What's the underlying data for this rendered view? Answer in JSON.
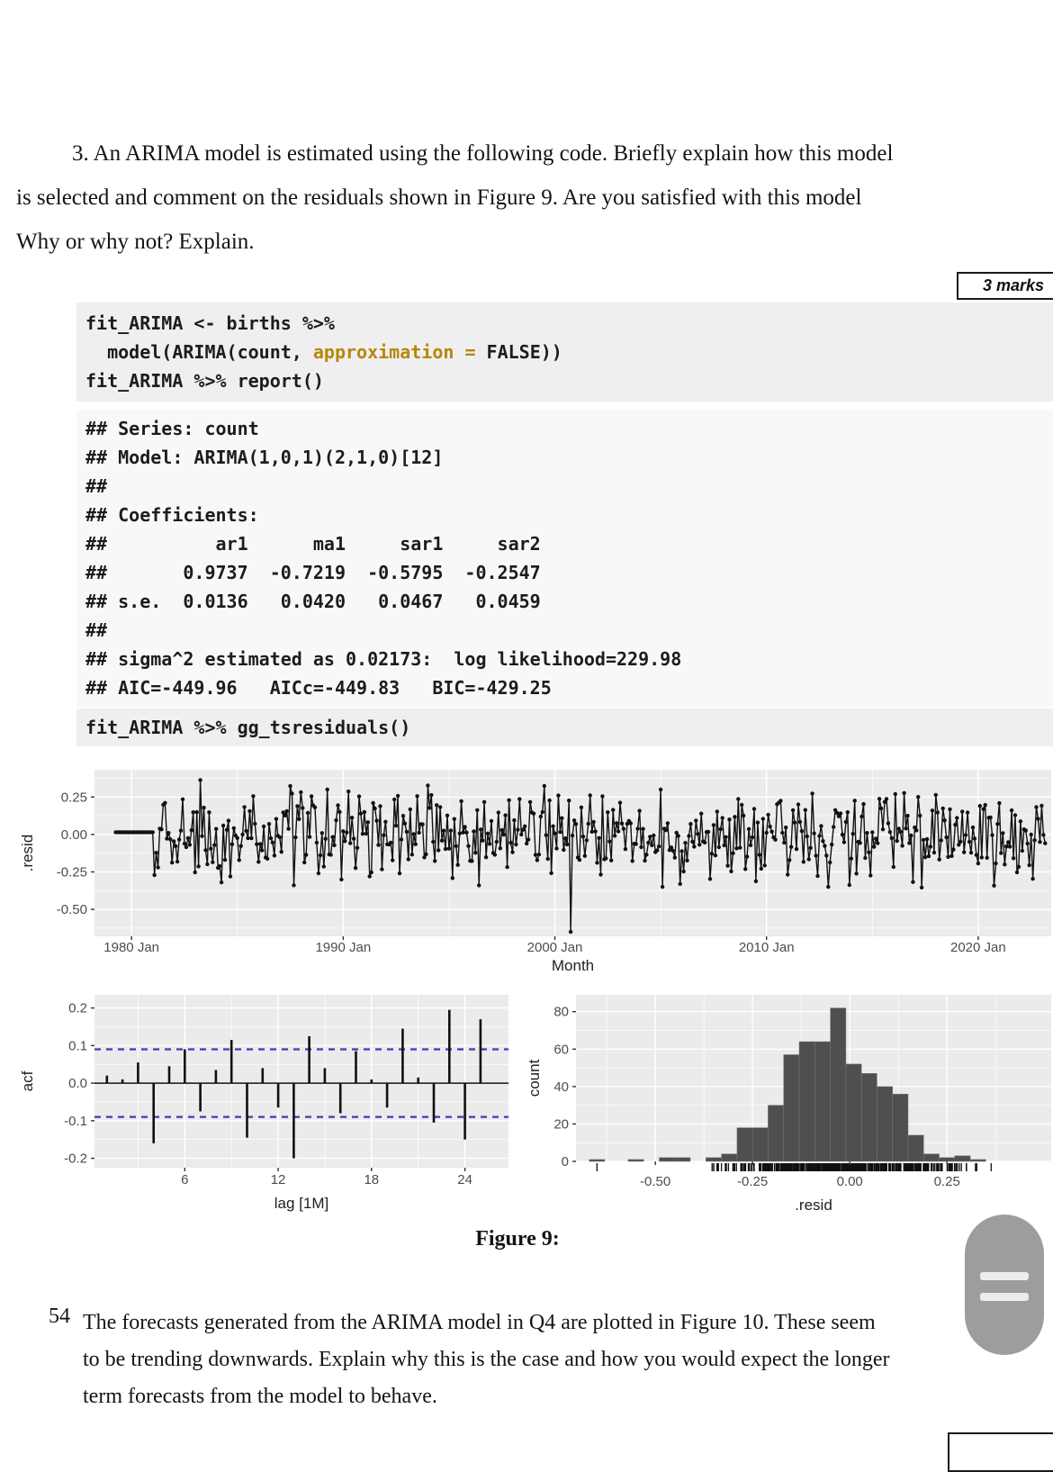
{
  "colors": {
    "code_bg": "#efefef",
    "output_bg": "#f8f8f8",
    "code_text": "#1c1c1c",
    "syntax_highlight": "#b8860b",
    "panel_bg": "#ebebeb",
    "grid_major": "#ffffff",
    "grid_minor": "#ffffff",
    "series": "#111111",
    "hist_fill": "#4f4f4f",
    "hist_stroke": "#7a7a7a",
    "acf_sig_line": "#3b3bbf",
    "tick_text": "#4d4d4d",
    "axis_title": "#1f1f1f",
    "scroll_pill": "#9d9d9d"
  },
  "question_3": {
    "lines": [
      "3. An ARIMA model is estimated using the following code. Briefly explain how this model",
      "is selected and comment on the residuals shown in Figure 9. Are you satisfied with this model",
      "Why or why not? Explain."
    ],
    "marks": "3 marks"
  },
  "code_block_1": {
    "lines": [
      [
        {
          "t": "fit_ARIMA <- births %>%"
        }
      ],
      [
        {
          "t": "  model(ARIMA(count, "
        },
        {
          "t": "approximation",
          "k": "hl"
        },
        {
          "t": " "
        },
        {
          "t": "=",
          "k": "hl"
        },
        {
          "t": " FALSE))"
        }
      ],
      [
        {
          "t": "fit_ARIMA %>% report()"
        }
      ]
    ]
  },
  "console_output": {
    "lines": [
      "## Series: count",
      "## Model: ARIMA(1,0,1)(2,1,0)[12]",
      "##",
      "## Coefficients:",
      "##          ar1      ma1     sar1     sar2",
      "##       0.9737  -0.7219  -0.5795  -0.2547",
      "## s.e.  0.0136   0.0420   0.0467   0.0459",
      "##",
      "## sigma^2 estimated as 0.02173:  log likelihood=229.98",
      "## AIC=-449.96   AICc=-449.83   BIC=-429.25"
    ]
  },
  "code_block_2": {
    "lines": [
      [
        {
          "t": "fit_ARIMA %>% gg_tsresiduals()"
        }
      ]
    ]
  },
  "figure_caption": "Figure 9:",
  "question_54": {
    "number": "54",
    "lines": [
      "The forecasts generated from the ARIMA model in Q4 are plotted in Figure 10. These seem",
      "to be trending downwards. Explain why this is the case and how you would expect the longer",
      "term forecasts from the model to behave."
    ]
  },
  "chart_data": [
    {
      "type": "line",
      "name": "innovation-residuals-time-series",
      "ylabel": ".resid",
      "xlabel": "Month",
      "x_range": [
        1978.25,
        2023.45
      ],
      "y_range": [
        -0.68,
        0.432
      ],
      "x_ticks": [
        {
          "v": 1980,
          "label": "1980 Jan"
        },
        {
          "v": 1990,
          "label": "1990 Jan"
        },
        {
          "v": 2000,
          "label": "2000 Jan"
        },
        {
          "v": 2010,
          "label": "2010 Jan"
        },
        {
          "v": 2020,
          "label": "2020 Jan"
        }
      ],
      "x_minor": [
        1985,
        1995,
        2005,
        2015
      ],
      "y_ticks": [
        {
          "v": 0.25,
          "label": "0.25"
        },
        {
          "v": 0,
          "label": "0.00"
        },
        {
          "v": -0.25,
          "label": "-0.25"
        },
        {
          "v": -0.5,
          "label": "-0.50"
        }
      ],
      "y_minor": [
        0.375,
        0.125,
        -0.125,
        -0.375,
        -0.625
      ],
      "series": {
        "note": "~530 monthly residuals 1979-2023 of ARIMA(1,0,1)(2,1,0)[12]; mean 0, mostly within +/-0.35; initial 1979-1980 segment flat at ~0; single large negative spike to -0.65 just after 2000 Jan",
        "n": 528,
        "start": 1979.25,
        "step_years": 0.0833333,
        "flat_until": 1981.05,
        "flat_value": 0.015,
        "amplitude": 0.37,
        "seed": 73,
        "overrides": {
          "60": -0.32,
          "206": -0.34,
          "258": -0.65,
          "310": -0.35,
          "404": -0.35
        }
      }
    },
    {
      "type": "bar",
      "name": "residual-acf",
      "ylabel": "acf",
      "xlabel": "lag [1M]",
      "x_range": [
        0.2,
        26.8
      ],
      "y_range": [
        -0.225,
        0.235
      ],
      "sig_level": 0.09,
      "values": [
        0.02,
        0.01,
        0.055,
        -0.16,
        0.045,
        0.09,
        -0.075,
        0.035,
        0.115,
        -0.145,
        0.04,
        -0.065,
        -0.2,
        0.125,
        0.04,
        -0.08,
        0.085,
        0.01,
        -0.065,
        0.145,
        0.015,
        -0.105,
        0.195,
        -0.15,
        0.17
      ],
      "x_ticks": [
        {
          "v": 6,
          "label": "6"
        },
        {
          "v": 12,
          "label": "12"
        },
        {
          "v": 18,
          "label": "18"
        },
        {
          "v": 24,
          "label": "24"
        }
      ],
      "x_minor": [
        3,
        9,
        15,
        21
      ],
      "y_ticks": [
        {
          "v": 0.2,
          "label": "0.2"
        },
        {
          "v": 0.1,
          "label": "0.1"
        },
        {
          "v": 0,
          "label": "0.0"
        },
        {
          "v": -0.1,
          "label": "-0.1"
        },
        {
          "v": -0.2,
          "label": "-0.2"
        }
      ],
      "y_minor": [
        0.15,
        0.05,
        -0.05,
        -0.15
      ]
    },
    {
      "type": "histogram",
      "name": "residual-histogram",
      "ylabel": "count",
      "xlabel": ".resid",
      "x_range": [
        -0.704,
        0.518
      ],
      "y_range": [
        0,
        89
      ],
      "bin_width": 0.04,
      "bars": [
        [
          -0.65,
          1
        ],
        [
          -0.55,
          1
        ],
        [
          -0.47,
          2
        ],
        [
          -0.43,
          2
        ],
        [
          -0.35,
          2
        ],
        [
          -0.31,
          4
        ],
        [
          -0.27,
          18
        ],
        [
          -0.23,
          18
        ],
        [
          -0.19,
          30
        ],
        [
          -0.15,
          57
        ],
        [
          -0.11,
          64
        ],
        [
          -0.07,
          64
        ],
        [
          -0.03,
          82
        ],
        [
          0.01,
          52
        ],
        [
          0.05,
          47
        ],
        [
          0.09,
          40
        ],
        [
          0.13,
          36
        ],
        [
          0.17,
          14
        ],
        [
          0.21,
          4
        ],
        [
          0.25,
          2
        ],
        [
          0.29,
          3
        ],
        [
          0.33,
          1
        ]
      ],
      "rug": true,
      "x_ticks": [
        {
          "v": -0.5,
          "label": "-0.50"
        },
        {
          "v": -0.25,
          "label": "-0.25"
        },
        {
          "v": 0,
          "label": "0.00"
        },
        {
          "v": 0.25,
          "label": "0.25"
        }
      ],
      "x_minor": [
        -0.625,
        -0.375,
        -0.125,
        0.125,
        0.375
      ],
      "y_ticks": [
        {
          "v": 0,
          "label": "0"
        },
        {
          "v": 20,
          "label": "20"
        },
        {
          "v": 40,
          "label": "40"
        },
        {
          "v": 60,
          "label": "60"
        },
        {
          "v": 80,
          "label": "80"
        }
      ],
      "y_minor": [
        10,
        30,
        50,
        70
      ]
    }
  ]
}
